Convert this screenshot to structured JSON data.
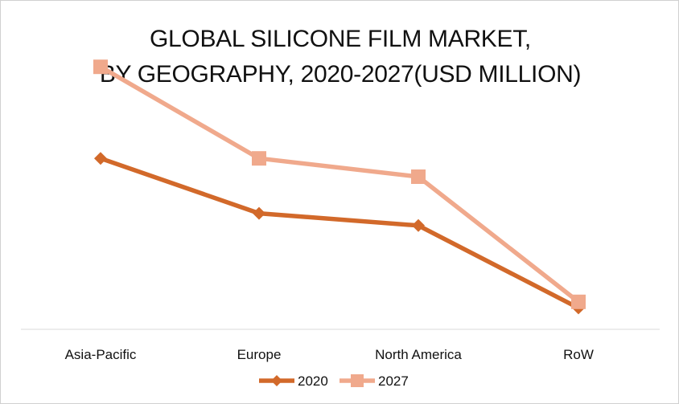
{
  "chart_data": {
    "type": "line",
    "title_line1": "GLOBAL SILICONE FILM  MARKET,",
    "title_line2": "BY GEOGRAPHY, 2020-2027(USD MILLION)",
    "categories": [
      "Asia-Pacific",
      "Europe",
      "North America",
      "RoW"
    ],
    "series": [
      {
        "name": "2020",
        "values": [
          56,
          38,
          34,
          7
        ],
        "color": "#d2692a",
        "marker": "diamond"
      },
      {
        "name": "2027",
        "values": [
          86,
          56,
          50,
          9
        ],
        "color": "#f0a98c",
        "marker": "square"
      }
    ],
    "ylim": [
      0,
      100
    ],
    "grid": false,
    "legend": "bottom"
  }
}
